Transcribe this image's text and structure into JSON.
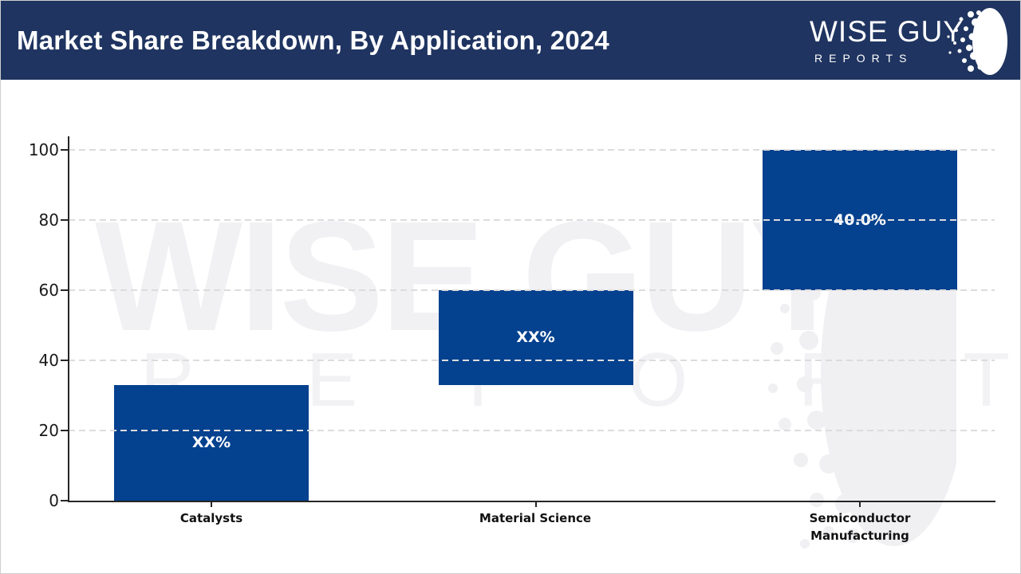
{
  "header": {
    "title": "Market Share Breakdown, By Application, 2024",
    "logo": {
      "line1": "WISE GUY",
      "line2": "R E P O R T S"
    }
  },
  "watermark": {
    "line1": "WISE GUY",
    "line2": "R E P O R T S"
  },
  "colors": {
    "header_bg": "#1f3460",
    "bar_blue": "#04418f",
    "gridline": "#dcdcdc",
    "axis": "#262626",
    "watermark_gray": "#f1f1f4",
    "bar_label_text": "#ffffff",
    "title_text": "#ffffff"
  },
  "chart_data": {
    "type": "bar",
    "subtype": "waterfall",
    "title": "Market Share Breakdown, By Application, 2024",
    "categories": [
      "Catalysts",
      "Material Science",
      "Semiconductor Manufacturing"
    ],
    "segments": [
      {
        "category": "Catalysts",
        "start": 0,
        "end": 33,
        "value_label": "XX%"
      },
      {
        "category": "Material Science",
        "start": 33,
        "end": 60,
        "value_label": "XX%"
      },
      {
        "category": "Semiconductor Manufacturing",
        "start": 60,
        "end": 100,
        "value_label": "40.0%"
      }
    ],
    "xlabel": "",
    "ylabel": "",
    "ylim": [
      0,
      100
    ],
    "yticks": [
      0,
      20,
      40,
      60,
      80,
      100
    ],
    "grid": "horizontal-dashed-above-bars",
    "legend": "none"
  }
}
